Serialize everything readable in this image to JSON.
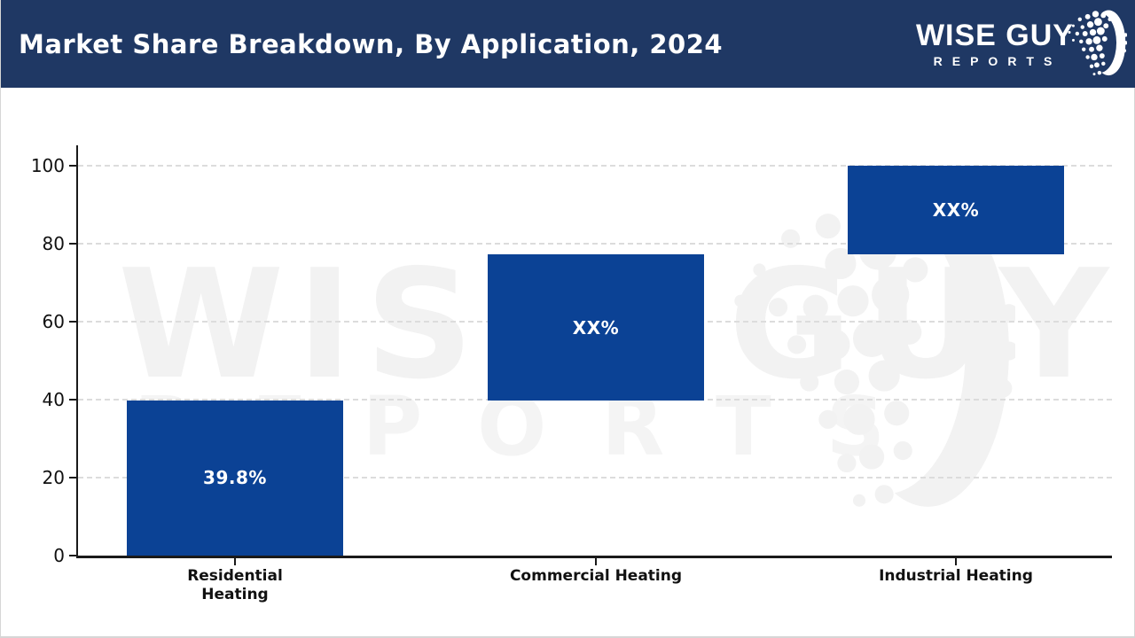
{
  "header": {
    "title": "Market Share Breakdown, By Application, 2024",
    "logo": {
      "line1": "WISE GUY",
      "line2": "REPORTS"
    }
  },
  "watermark": {
    "line1": "WISE GUY",
    "line2": "REPORTS"
  },
  "chart_data": {
    "type": "bar",
    "subtype": "stacked-waterfall-percentage",
    "title": "Market Share Breakdown, By Application, 2024",
    "categories": [
      "Residential\nHeating",
      "Commercial Heating",
      "Industrial Heating"
    ],
    "segments": [
      {
        "category": "Residential Heating",
        "from": 0,
        "to": 39.8,
        "size_est": 39.8,
        "label": "39.8%"
      },
      {
        "category": "Commercial Heating",
        "from": 39.8,
        "to": 77.2,
        "size_est": 37.4,
        "label": "XX%"
      },
      {
        "category": "Industrial Heating",
        "from": 77.2,
        "to": 100,
        "size_est": 22.8,
        "label": "XX%"
      }
    ],
    "yticks": [
      0,
      20,
      40,
      60,
      80,
      100
    ],
    "ylim": [
      0,
      100
    ],
    "xlabel": "",
    "ylabel": "",
    "grid": "dashed-horizontal",
    "legend": "none",
    "bar_color": "#0b4295",
    "bar_label_color": "#ffffff"
  },
  "colors": {
    "header_bg": "#1f3864",
    "bar": "#0b4295",
    "gridline": "#dcdcdc",
    "axis": "#1a1a1a",
    "watermark": "#f2f2f2"
  }
}
